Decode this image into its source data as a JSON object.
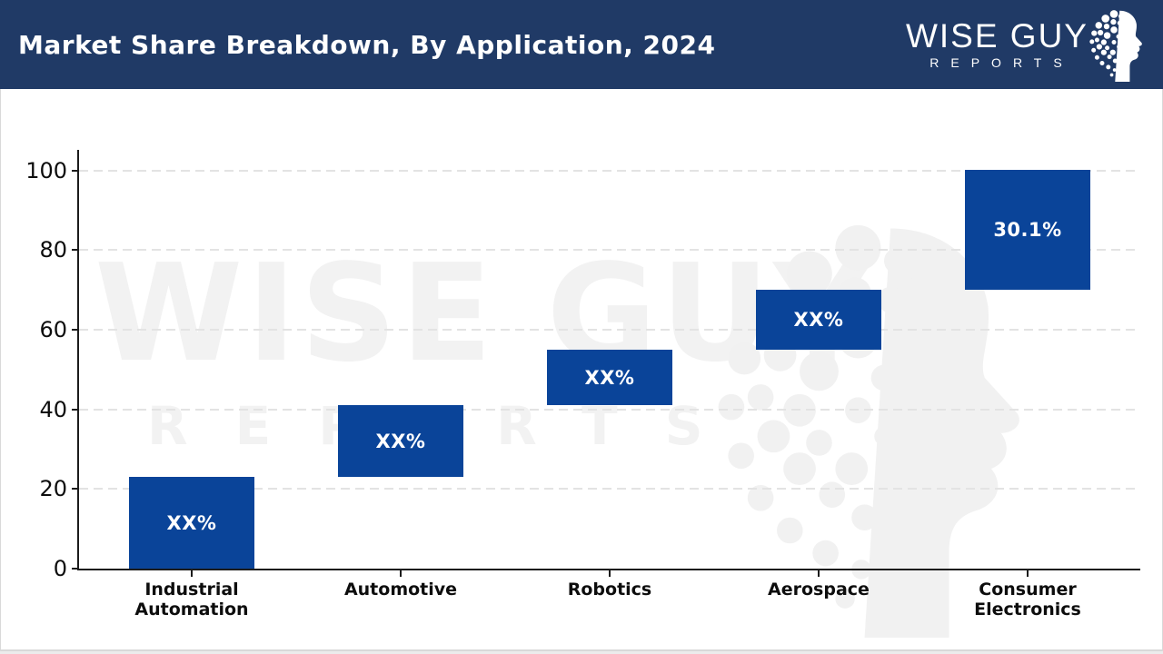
{
  "header": {
    "title": "Market Share Breakdown, By Application, 2024",
    "logo": {
      "line1": "WISE GUY",
      "line2": "REPORTS"
    }
  },
  "watermark": {
    "line1": "WISE GUY",
    "line2": "REPORTS"
  },
  "chart_data": {
    "type": "bar",
    "subtype": "floating-waterfall",
    "title": "Market Share Breakdown, By Application, 2024",
    "categories": [
      "Industrial Automation",
      "Automotive",
      "Robotics",
      "Aerospace",
      "Consumer Electronics"
    ],
    "segments": [
      {
        "category": "Industrial Automation",
        "start": 0,
        "end": 23,
        "value_label": "XX%"
      },
      {
        "category": "Automotive",
        "start": 23,
        "end": 41,
        "value_label": "XX%"
      },
      {
        "category": "Robotics",
        "start": 41,
        "end": 55,
        "value_label": "XX%"
      },
      {
        "category": "Aerospace",
        "start": 55,
        "end": 70,
        "value_label": "XX%"
      },
      {
        "category": "Consumer Electronics",
        "start": 70,
        "end": 100.1,
        "value_label": "30.1%"
      }
    ],
    "yticks": [
      0,
      20,
      40,
      60,
      80,
      100
    ],
    "ylim": [
      0,
      105
    ],
    "xlabel": "",
    "ylabel": "",
    "grid": "horizontal-dashed",
    "legend": "none"
  },
  "colors": {
    "header_bg": "#203a66",
    "bar": "#0a4499",
    "bar_label": "#ffffff",
    "axis": "#1c1c1c",
    "gridline": "#e3e3e3",
    "watermark": "#f2f2f2"
  }
}
